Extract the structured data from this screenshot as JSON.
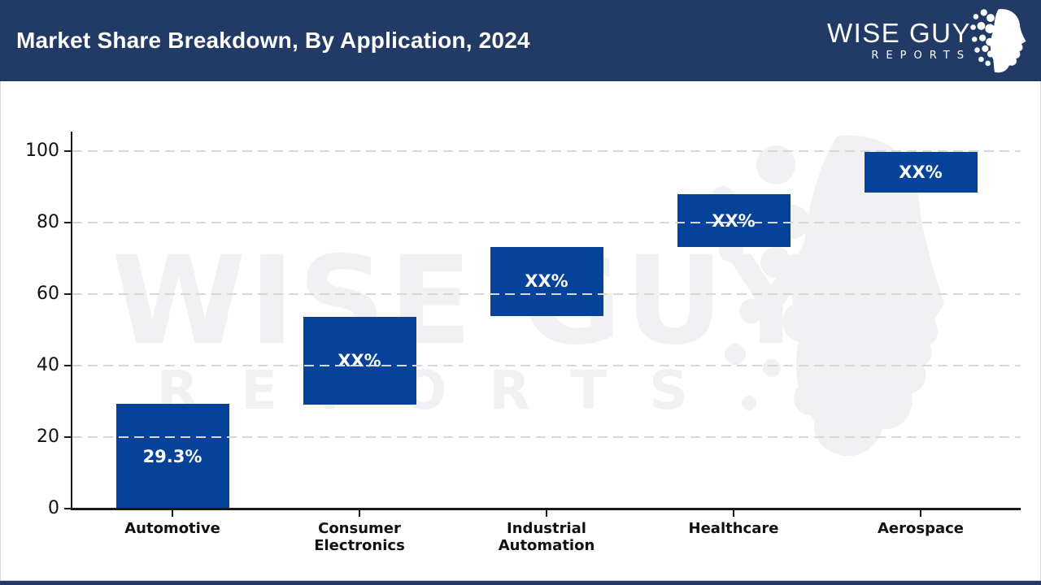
{
  "header": {
    "title": "Market Share Breakdown, By Application, 2024",
    "logo": {
      "primary": "WISE GUY",
      "secondary": "REPORTS"
    }
  },
  "watermark": {
    "primary": "WISE GUY",
    "secondary": "REPORTS"
  },
  "chart_data": {
    "type": "bar",
    "variant": "waterfall",
    "title": "Market Share Breakdown, By Application, 2024",
    "categories": [
      "Automotive",
      "Consumer Electronics",
      "Industrial Automation",
      "Healthcare",
      "Aerospace"
    ],
    "category_lines": [
      [
        "Automotive"
      ],
      [
        "Consumer",
        "Electronics"
      ],
      [
        "Industrial",
        "Automation"
      ],
      [
        "Healthcare"
      ],
      [
        "Aerospace"
      ]
    ],
    "bars": [
      {
        "category": "Automotive",
        "start": 0,
        "end": 29.3,
        "label": "29.3%"
      },
      {
        "category": "Consumer Electronics",
        "start": 29.2,
        "end": 53.6,
        "label": "XX%"
      },
      {
        "category": "Industrial Automation",
        "start": 53.9,
        "end": 73.2,
        "label": "XX%"
      },
      {
        "category": "Healthcare",
        "start": 73.2,
        "end": 87.9,
        "label": "XX%"
      },
      {
        "category": "Aerospace",
        "start": 88.3,
        "end": 99.8,
        "label": "XX%"
      }
    ],
    "yticks": [
      0,
      20,
      40,
      60,
      80,
      100
    ],
    "ylim": [
      0,
      105
    ],
    "xlabel": "",
    "ylabel": "",
    "grid": "horizontal-dashed",
    "legend": "none"
  },
  "colors": {
    "header_bg": "#213a66",
    "footer_bg": "#213a66",
    "bar": "#05429a",
    "bar_label": "#ffffff",
    "grid": "#d8d8d8",
    "axis": "#1a1a1a",
    "watermark": "#f1f1f3"
  }
}
